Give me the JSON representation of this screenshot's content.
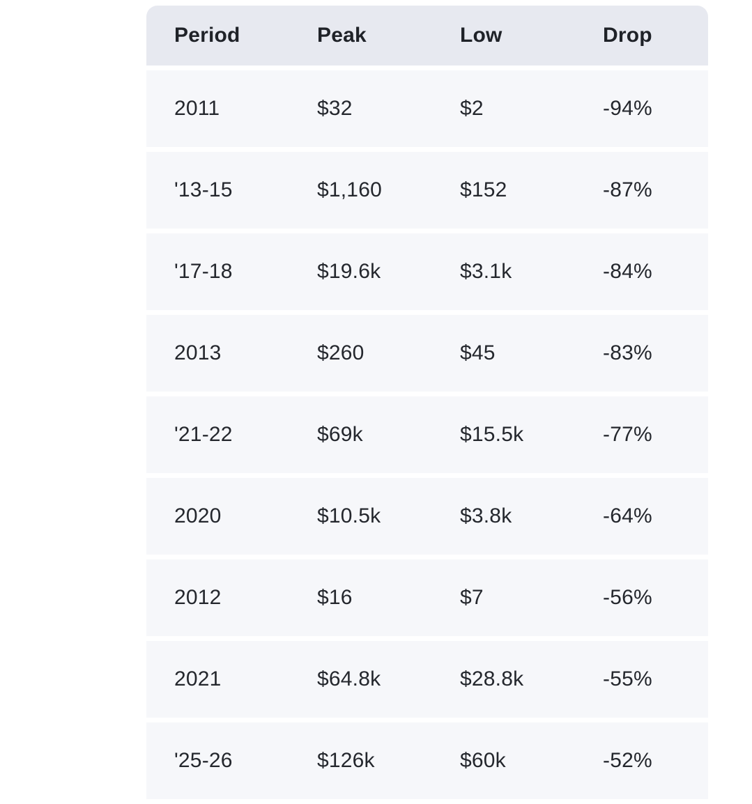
{
  "table": {
    "headers": [
      "Period",
      "Peak",
      "Low",
      "Drop"
    ],
    "rows": [
      {
        "period": "2011",
        "peak": "$32",
        "low": "$2",
        "drop": "-94%"
      },
      {
        "period": "'13-15",
        "peak": "$1,160",
        "low": "$152",
        "drop": "-87%"
      },
      {
        "period": "'17-18",
        "peak": "$19.6k",
        "low": "$3.1k",
        "drop": "-84%"
      },
      {
        "period": "2013",
        "peak": "$260",
        "low": "$45",
        "drop": "-83%"
      },
      {
        "period": "'21-22",
        "peak": "$69k",
        "low": "$15.5k",
        "drop": "-77%"
      },
      {
        "period": "2020",
        "peak": "$10.5k",
        "low": "$3.8k",
        "drop": "-64%"
      },
      {
        "period": "2012",
        "peak": "$16",
        "low": "$7",
        "drop": "-56%"
      },
      {
        "period": "2021",
        "peak": "$64.8k",
        "low": "$28.8k",
        "drop": "-55%"
      },
      {
        "period": "'25-26",
        "peak": "$126k",
        "low": "$60k",
        "drop": "-52%"
      }
    ]
  },
  "chart_data": {
    "type": "table",
    "columns": [
      "Period",
      "Peak",
      "Low",
      "Drop"
    ],
    "rows": [
      [
        "2011",
        "$32",
        "$2",
        "-94%"
      ],
      [
        "'13-15",
        "$1,160",
        "$152",
        "-87%"
      ],
      [
        "'17-18",
        "$19.6k",
        "$3.1k",
        "-84%"
      ],
      [
        "2013",
        "$260",
        "$45",
        "-83%"
      ],
      [
        "'21-22",
        "$69k",
        "$15.5k",
        "-77%"
      ],
      [
        "2020",
        "$10.5k",
        "$3.8k",
        "-64%"
      ],
      [
        "2012",
        "$16",
        "$7",
        "-56%"
      ],
      [
        "2021",
        "$64.8k",
        "$28.8k",
        "-55%"
      ],
      [
        "'25-26",
        "$126k",
        "$60k",
        "-52%"
      ]
    ],
    "drop_values_pct": [
      -94,
      -87,
      -84,
      -83,
      -77,
      -64,
      -56,
      -55,
      -52
    ]
  },
  "colors": {
    "header_bg": "#e7e9f0",
    "row_bg": "#f6f7fa",
    "text": "#24272d",
    "header_text": "#1f2228",
    "page_bg": "#ffffff"
  }
}
